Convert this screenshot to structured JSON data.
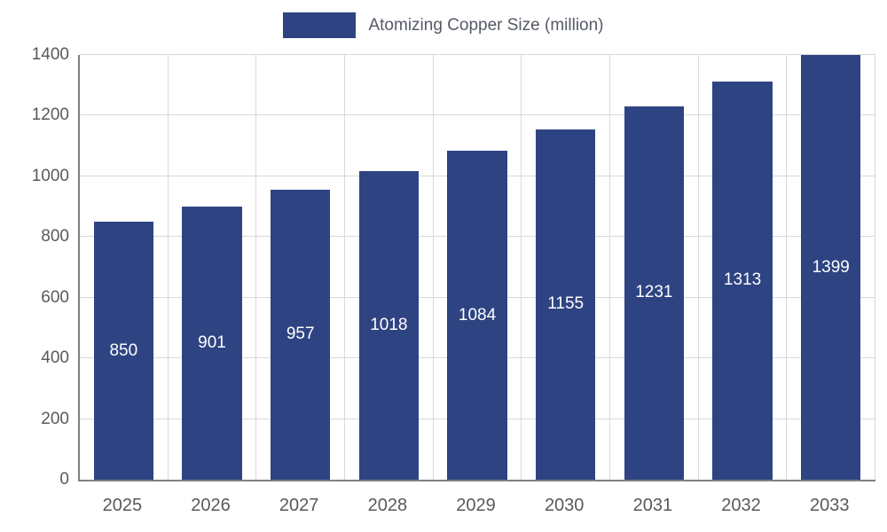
{
  "chart_data": {
    "type": "bar",
    "title": "",
    "legend": "Atomizing Copper Size (million)",
    "categories": [
      "2025",
      "2026",
      "2027",
      "2028",
      "2029",
      "2030",
      "2031",
      "2032",
      "2033"
    ],
    "values": [
      850,
      901,
      957,
      1018,
      1084,
      1155,
      1231,
      1313,
      1399
    ],
    "xlabel": "",
    "ylabel": "",
    "ylim": [
      0,
      1400
    ],
    "yticks": [
      0,
      200,
      400,
      600,
      800,
      1000,
      1200,
      1400
    ],
    "grid": true,
    "legend_position": "top",
    "bar_value_labels_visible": true,
    "colors": {
      "bar": "#2e4482",
      "bar_label": "#ffffff",
      "axis_line": "#808080",
      "gridline": "#d9d9d9",
      "tick_label": "#595959",
      "legend_text": "#555a66",
      "background": "#ffffff"
    }
  }
}
